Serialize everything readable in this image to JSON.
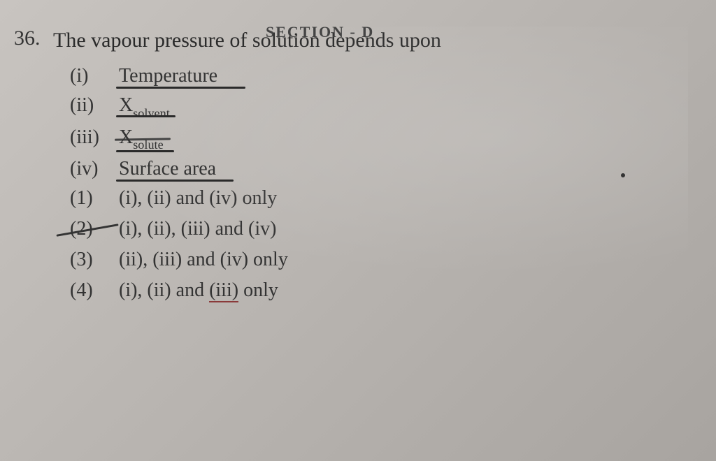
{
  "header_fragment": "SECTION - D",
  "question": {
    "number": "36.",
    "text": "The vapour pressure of solution depends upon"
  },
  "items": [
    {
      "label": "(i)",
      "text": "Temperature",
      "style": "underline"
    },
    {
      "label": "(ii)",
      "pre": "X",
      "sub": "solvent",
      "style": "underline"
    },
    {
      "label": "(iii)",
      "pre": "X",
      "sub": "solute",
      "style": "strike-underline"
    },
    {
      "label": "(iv)",
      "text": "Surface area",
      "style": "underline"
    }
  ],
  "choices": [
    {
      "label": "(1)",
      "text": "(i), (ii) and (iv) only",
      "marked": "none"
    },
    {
      "label": "(2)",
      "text": "(i), (ii), (iii) and (iv)",
      "marked": "crossed"
    },
    {
      "label": "(3)",
      "text": "(ii), (iii) and (iv) only",
      "marked": "none"
    },
    {
      "label": "(4)",
      "text_pre": "(i), (ii) and ",
      "text_underlined": "(iii)",
      "text_post": " only",
      "marked": "red-underline"
    }
  ],
  "colors": {
    "background": "#b8b4b0",
    "text": "#2a2a2a",
    "pen": "#333333",
    "red": "#8a3a3a"
  },
  "typography": {
    "question_fontsize": 30,
    "option_fontsize": 28,
    "font_family": "Georgia, Times New Roman, serif"
  }
}
